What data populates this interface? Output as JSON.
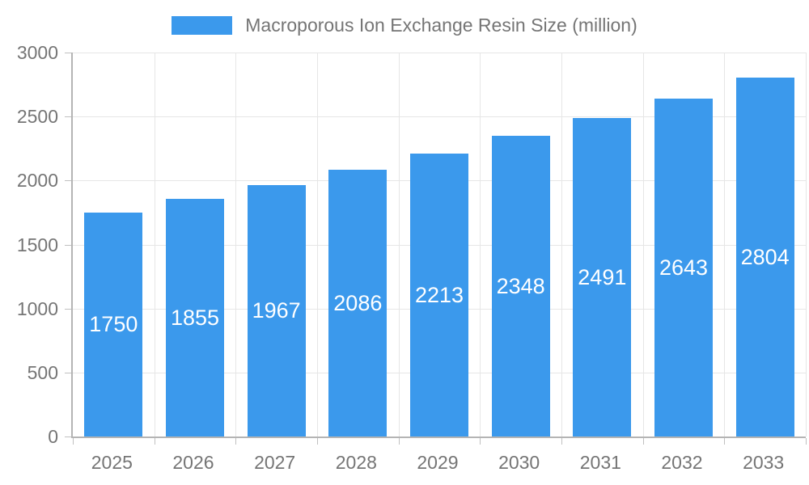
{
  "chart_data": {
    "type": "bar",
    "title": "",
    "legend": {
      "label": "Macroporous Ion Exchange Resin Size (million)",
      "position": "top"
    },
    "categories": [
      "2025",
      "2026",
      "2027",
      "2028",
      "2029",
      "2030",
      "2031",
      "2032",
      "2033"
    ],
    "series": [
      {
        "name": "Macroporous Ion Exchange Resin Size (million)",
        "values": [
          1750,
          1855,
          1967,
          2086,
          2213,
          2348,
          2491,
          2643,
          2804
        ]
      }
    ],
    "xlabel": "",
    "ylabel": "",
    "ylim": [
      0,
      3000
    ],
    "ytick_step": 500,
    "grid": true,
    "value_labels": "inside-center",
    "colors": {
      "bar": "#3b99ec",
      "bar_label_text": "#ffffff",
      "axis_text": "#757575",
      "gridline": "#e6e6e6",
      "axis_line": "#b4b4b4",
      "background": "#ffffff"
    }
  }
}
